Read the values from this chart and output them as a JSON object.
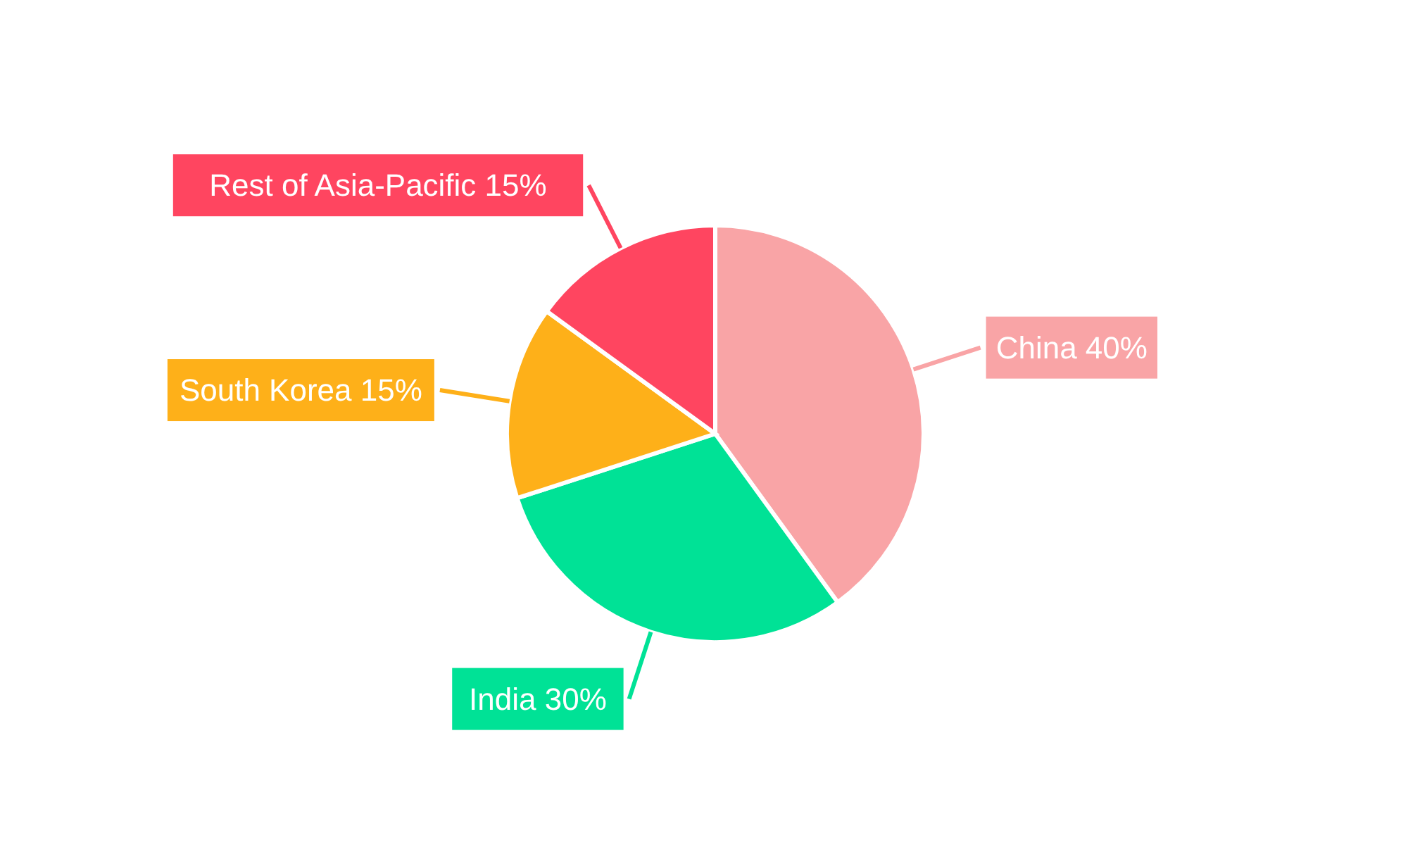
{
  "chart_data": {
    "type": "pie",
    "categories": [
      "China",
      "India",
      "South Korea",
      "Rest of Asia-Pacific"
    ],
    "values": [
      40,
      30,
      15,
      15
    ],
    "colors": [
      "#f9a4a6",
      "#00e296",
      "#feb019",
      "#ff4560"
    ],
    "value_labels": [
      "40%",
      "30%",
      "15%",
      "15%"
    ]
  }
}
